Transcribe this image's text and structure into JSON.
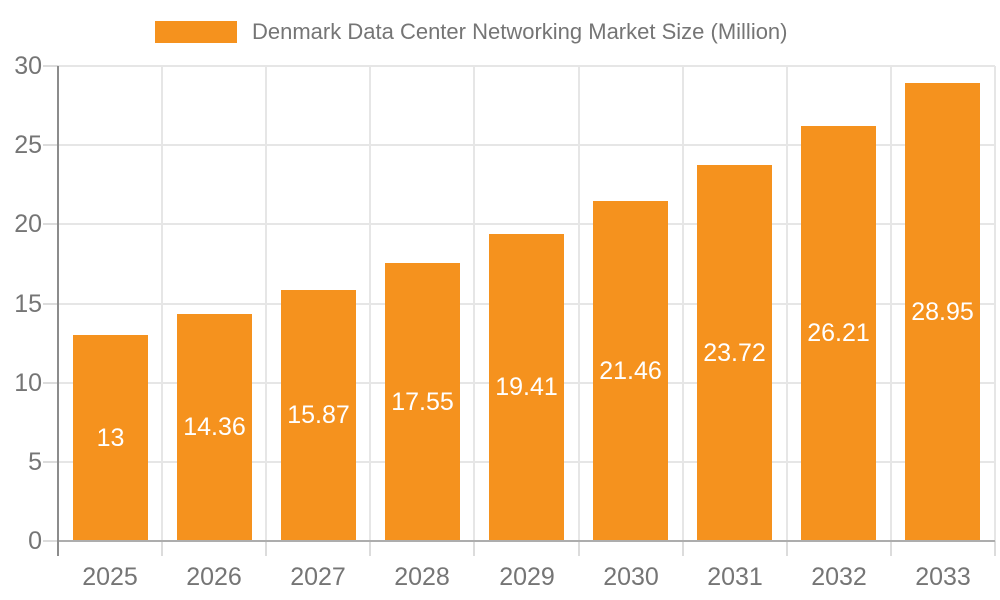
{
  "chart_data": {
    "type": "bar",
    "title": "Denmark Data Center Networking Market Size (Million)",
    "categories": [
      "2025",
      "2026",
      "2027",
      "2028",
      "2029",
      "2030",
      "2031",
      "2032",
      "2033"
    ],
    "values": [
      13,
      14.36,
      15.87,
      17.55,
      19.41,
      21.46,
      23.72,
      26.21,
      28.95
    ],
    "value_labels": [
      "13",
      "14.36",
      "15.87",
      "17.55",
      "19.41",
      "21.46",
      "23.72",
      "26.21",
      "28.95"
    ],
    "xlabel": "",
    "ylabel": "",
    "ylim": [
      0,
      30
    ],
    "yticks": [
      0,
      5,
      10,
      15,
      20,
      25,
      30
    ],
    "grid": true,
    "legend_position": "top-center",
    "colors": {
      "bar": "#F5921E",
      "axis_label": "#757575",
      "value_label": "#FFFFFF"
    }
  }
}
